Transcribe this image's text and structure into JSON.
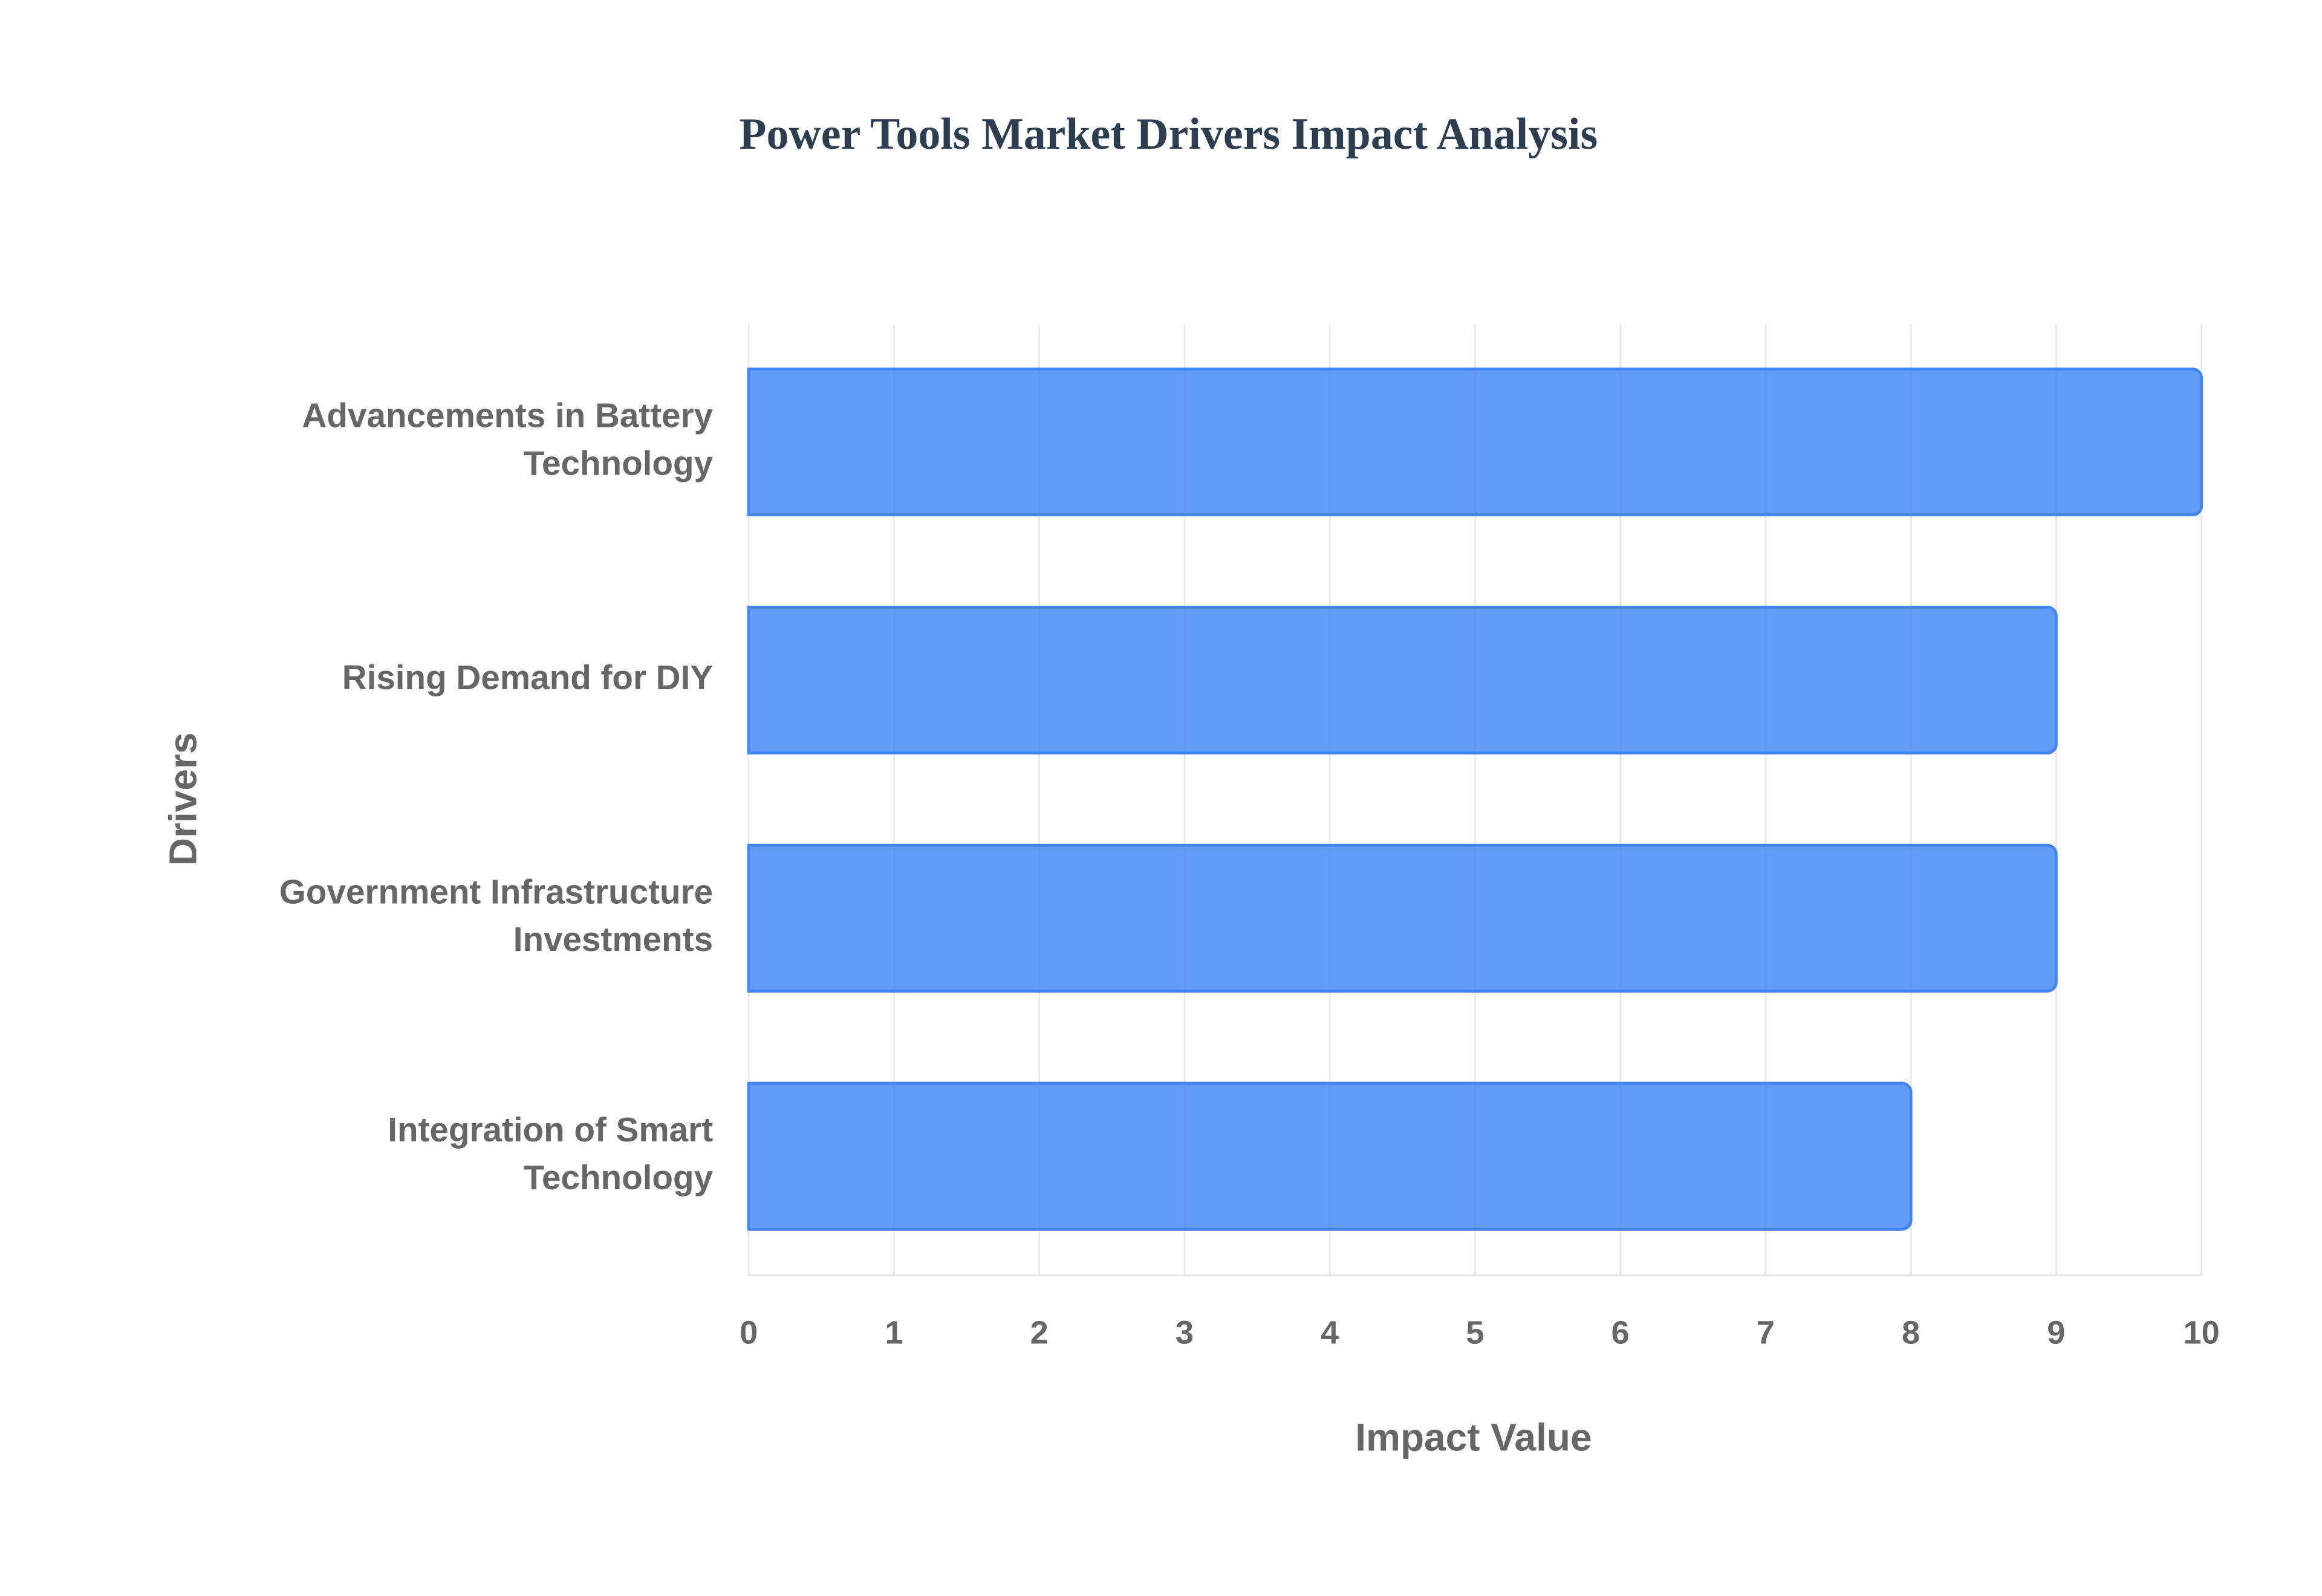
{
  "chart_data": {
    "type": "bar",
    "orientation": "horizontal",
    "title": "Power Tools Market Drivers Impact Analysis",
    "x_label": "Impact Value",
    "y_label": "Drivers",
    "categories": [
      "Advancements in Battery Technology",
      "Rising Demand for DIY",
      "Government Infrastructure Investments",
      "Integration of Smart Technology"
    ],
    "values": [
      10,
      9,
      9,
      8
    ],
    "color": "#4285f4",
    "xlim": [
      0,
      10
    ],
    "xticks": [
      0,
      1,
      2,
      3,
      4,
      5,
      6,
      7,
      8,
      9,
      10
    ],
    "grid": true
  }
}
